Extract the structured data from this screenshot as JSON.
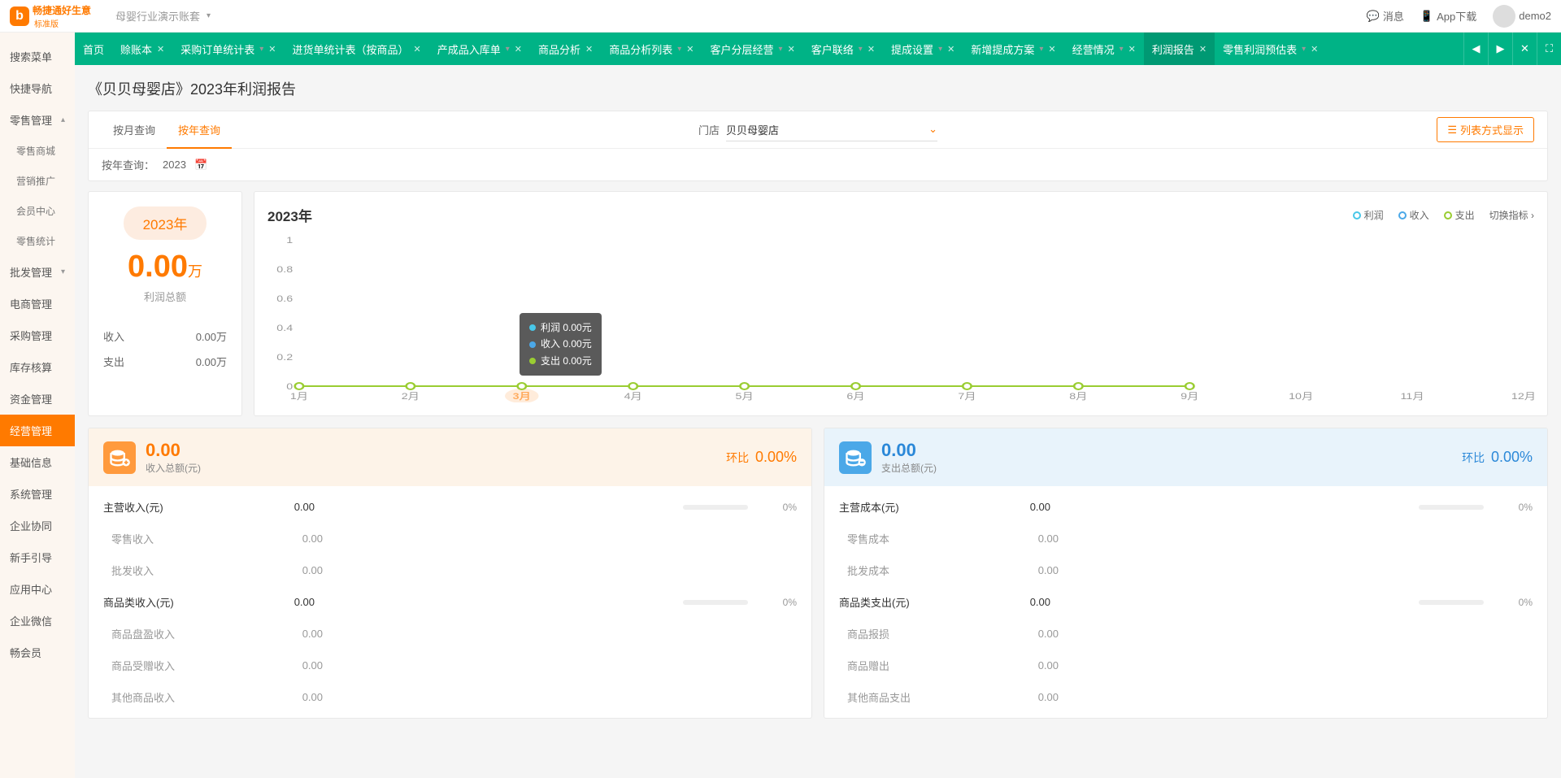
{
  "brand": {
    "name": "畅捷通好生意",
    "edition": "标准版"
  },
  "account": "母婴行业演示账套",
  "topActions": {
    "msg": "消息",
    "app": "App下载",
    "user": "demo2"
  },
  "sidebar": {
    "items": [
      {
        "label": "搜索菜单"
      },
      {
        "label": "快捷导航"
      },
      {
        "label": "零售管理",
        "exp": true
      },
      {
        "label": "零售商城",
        "indent": true
      },
      {
        "label": "营销推广",
        "indent": true
      },
      {
        "label": "会员中心",
        "indent": true
      },
      {
        "label": "零售统计",
        "indent": true
      },
      {
        "label": "批发管理",
        "exp": true
      },
      {
        "label": "电商管理"
      },
      {
        "label": "采购管理"
      },
      {
        "label": "库存核算"
      },
      {
        "label": "资金管理"
      },
      {
        "label": "经营管理",
        "active": true
      },
      {
        "label": "基础信息"
      },
      {
        "label": "系统管理"
      },
      {
        "label": "企业协同"
      },
      {
        "label": "新手引导"
      },
      {
        "label": "应用中心"
      },
      {
        "label": "企业微信"
      },
      {
        "label": "畅会员"
      }
    ]
  },
  "tabs": [
    {
      "label": "首页"
    },
    {
      "label": "赊账本",
      "close": true
    },
    {
      "label": "采购订单统计表",
      "close": true,
      "dd": true
    },
    {
      "label": "进货单统计表（按商品）",
      "close": true
    },
    {
      "label": "产成品入库单",
      "close": true,
      "dd": true
    },
    {
      "label": "商品分析",
      "close": true
    },
    {
      "label": "商品分析列表",
      "close": true,
      "dd": true
    },
    {
      "label": "客户分层经营",
      "close": true,
      "dd": true
    },
    {
      "label": "客户联络",
      "close": true,
      "dd": true
    },
    {
      "label": "提成设置",
      "close": true,
      "dd": true
    },
    {
      "label": "新增提成方案",
      "close": true,
      "dd": true
    },
    {
      "label": "经营情况",
      "close": true,
      "dd": true
    },
    {
      "label": "利润报告",
      "close": true,
      "active": true
    },
    {
      "label": "零售利润预估表",
      "close": true,
      "dd": true
    }
  ],
  "page": {
    "title": "《贝贝母婴店》2023年利润报告"
  },
  "filter": {
    "mode_month": "按月查询",
    "mode_year": "按年查询",
    "store_label": "门店",
    "store_value": "贝贝母婴店",
    "list_btn": "列表方式显示",
    "year_label": "按年查询：",
    "year_value": "2023"
  },
  "yearCard": {
    "badge": "2023年",
    "value": "0.00",
    "unit": "万",
    "label": "利润总额",
    "income_label": "收入",
    "income_value": "0.00万",
    "expense_label": "支出",
    "expense_value": "0.00万"
  },
  "chart": {
    "title": "2023年",
    "switch": "切换指标",
    "legend": [
      {
        "label": "利润",
        "color": "#48c7e8"
      },
      {
        "label": "收入",
        "color": "#4ba8e8"
      },
      {
        "label": "支出",
        "color": "#9acd32"
      }
    ],
    "ylim": [
      0,
      1
    ],
    "ytick_step": 0.2,
    "yticks": [
      "1",
      "0.8",
      "0.6",
      "0.4",
      "0.2",
      "0"
    ],
    "xlabels": [
      "1月",
      "2月",
      "3月",
      "4月",
      "5月",
      "6月",
      "7月",
      "8月",
      "9月",
      "10月",
      "11月",
      "12月"
    ],
    "highlight_idx": 2,
    "tooltip": [
      {
        "label": "利润",
        "val": "0.00元",
        "color": "#48c7e8"
      },
      {
        "label": "收入",
        "val": "0.00元",
        "color": "#4ba8e8"
      },
      {
        "label": "支出",
        "val": "0.00元",
        "color": "#9acd32"
      }
    ],
    "line_last_idx": 8
  },
  "income": {
    "total": "0.00",
    "label": "收入总额(元)",
    "ratio_label": "环比",
    "ratio": "0.00%",
    "rows": [
      {
        "label": "主营收入(元)",
        "val": "0.00",
        "pct": "0%",
        "bold": true
      },
      {
        "label": "零售收入",
        "val": "0.00",
        "sub": true
      },
      {
        "label": "批发收入",
        "val": "0.00",
        "sub": true
      },
      {
        "label": "商品类收入(元)",
        "val": "0.00",
        "pct": "0%",
        "bold": true
      },
      {
        "label": "商品盘盈收入",
        "val": "0.00",
        "sub": true
      },
      {
        "label": "商品受赠收入",
        "val": "0.00",
        "sub": true
      },
      {
        "label": "其他商品收入",
        "val": "0.00",
        "sub": true
      }
    ]
  },
  "expense": {
    "total": "0.00",
    "label": "支出总额(元)",
    "ratio_label": "环比",
    "ratio": "0.00%",
    "rows": [
      {
        "label": "主营成本(元)",
        "val": "0.00",
        "pct": "0%",
        "bold": true
      },
      {
        "label": "零售成本",
        "val": "0.00",
        "sub": true
      },
      {
        "label": "批发成本",
        "val": "0.00",
        "sub": true
      },
      {
        "label": "商品类支出(元)",
        "val": "0.00",
        "pct": "0%",
        "bold": true
      },
      {
        "label": "商品报损",
        "val": "0.00",
        "sub": true
      },
      {
        "label": "商品赠出",
        "val": "0.00",
        "sub": true
      },
      {
        "label": "其他商品支出",
        "val": "0.00",
        "sub": true
      }
    ]
  }
}
